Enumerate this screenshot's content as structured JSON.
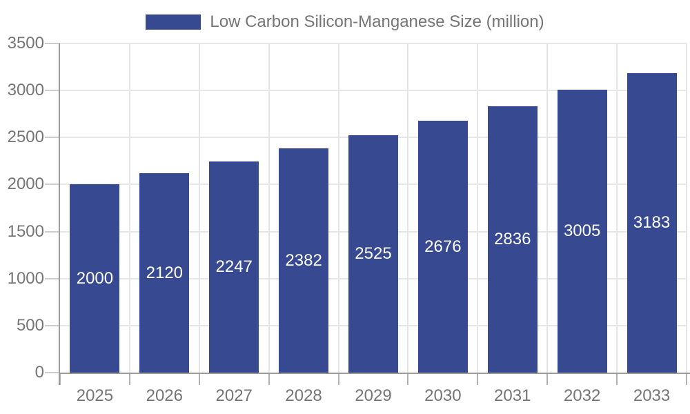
{
  "chart_data": {
    "type": "bar",
    "title": "",
    "series_name": "Low Carbon Silicon-Manganese Size (million)",
    "categories": [
      "2025",
      "2026",
      "2027",
      "2028",
      "2029",
      "2030",
      "2031",
      "2032",
      "2033"
    ],
    "values": [
      2000,
      2120,
      2247,
      2382,
      2525,
      2676,
      2836,
      3005,
      3183
    ],
    "xlabel": "",
    "ylabel": "",
    "ylim": [
      0,
      3500
    ],
    "yticks": [
      0,
      500,
      1000,
      1500,
      2000,
      2500,
      3000,
      3500
    ],
    "grid": true,
    "legend_position": "top",
    "bar_labels_shown": true,
    "bar_label_position": "inside-middle"
  },
  "colors": {
    "bar": "#374990",
    "bar_label": "#ffffff",
    "axis_text": "#757575",
    "axis_line": "#9a9a9a",
    "gridline": "#e6e6e6",
    "x_tick": "#b3b3b3",
    "y_tick": "#cccccc",
    "background": "#ffffff"
  }
}
